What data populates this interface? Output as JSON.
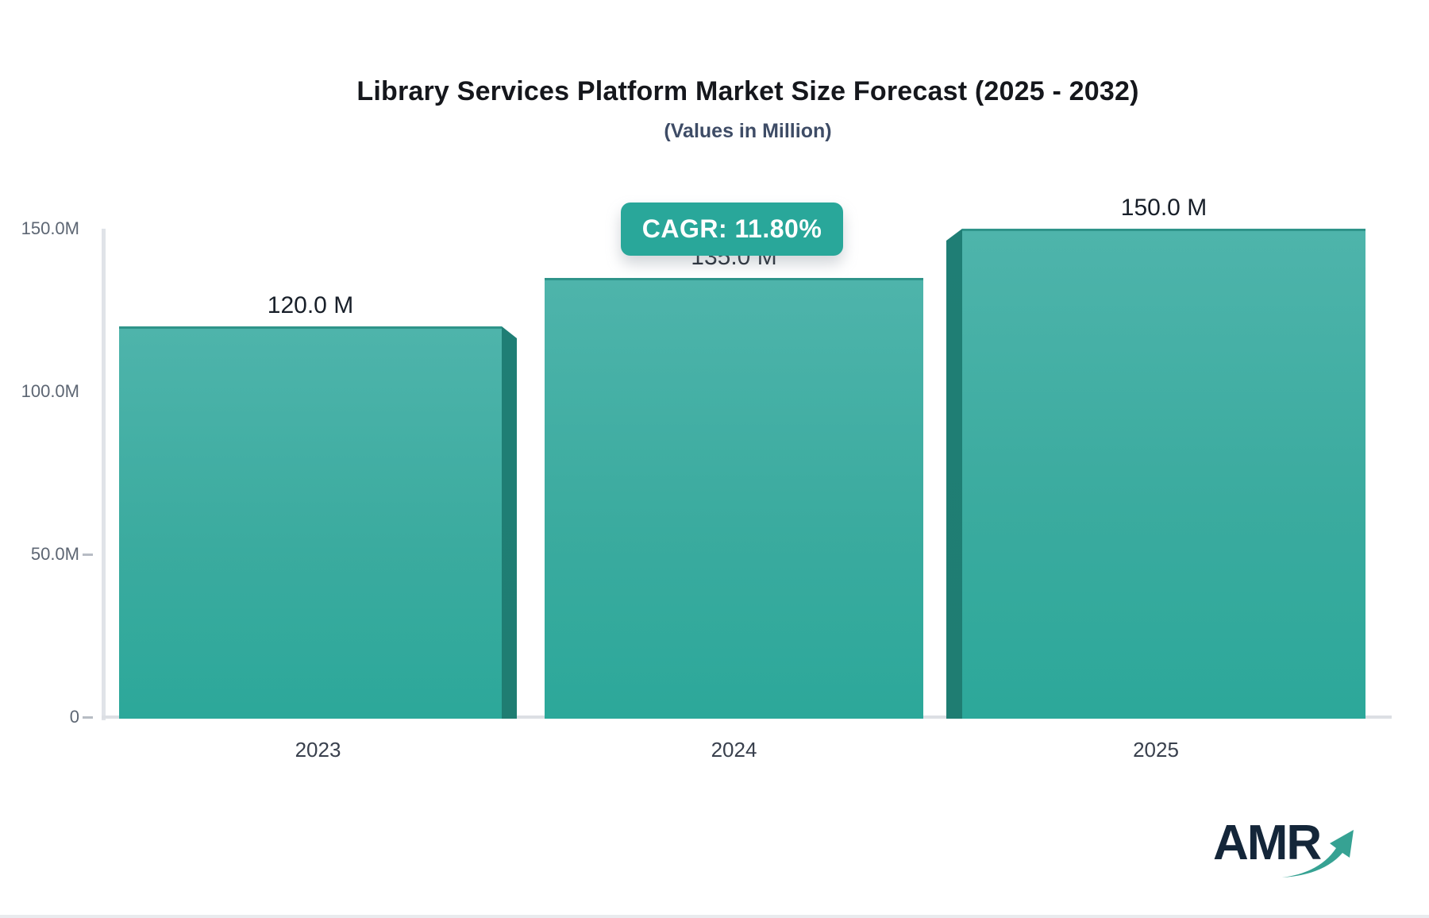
{
  "header": {
    "title": "Library Services Platform Market Size Forecast (2025 - 2032)",
    "subtitle": "(Values in Million)"
  },
  "badge": {
    "label": "CAGR: 11.80%"
  },
  "logo": {
    "text": "AMR"
  },
  "colors": {
    "teal_accent": "#2aa79b",
    "bar_gradient_top": "#4eb4ab",
    "bar_gradient_bottom": "#2ca89a",
    "bar_side_dark": "#1f7d72",
    "axis_line": "#dfe2e7",
    "title_text": "#15171c",
    "subtitle_text": "#3e4c66",
    "logo_navy": "#142639",
    "logo_arrow_teal": "#36a293"
  },
  "chart_data": {
    "type": "bar",
    "title": "Library Services Platform Market Size Forecast (2025 - 2032)",
    "subtitle": "(Values in Million)",
    "categories": [
      "2023",
      "2024",
      "2025"
    ],
    "values": [
      120,
      135,
      150
    ],
    "value_labels": [
      "120.0 M",
      "135.0 M",
      "150.0 M"
    ],
    "cagr_annotation": "CAGR: 11.80%",
    "xlabel": "",
    "ylabel": "",
    "ylim": [
      0,
      150
    ],
    "y_ticks": [
      {
        "label": "150.0M",
        "value": 150
      },
      {
        "label": "100.0M",
        "value": 100
      },
      {
        "label": "50.0M",
        "value": 50
      },
      {
        "label": "0",
        "value": 0
      }
    ],
    "grid": false,
    "legend": false,
    "bar_style": "3d-beveled, teal vertical gradient"
  }
}
